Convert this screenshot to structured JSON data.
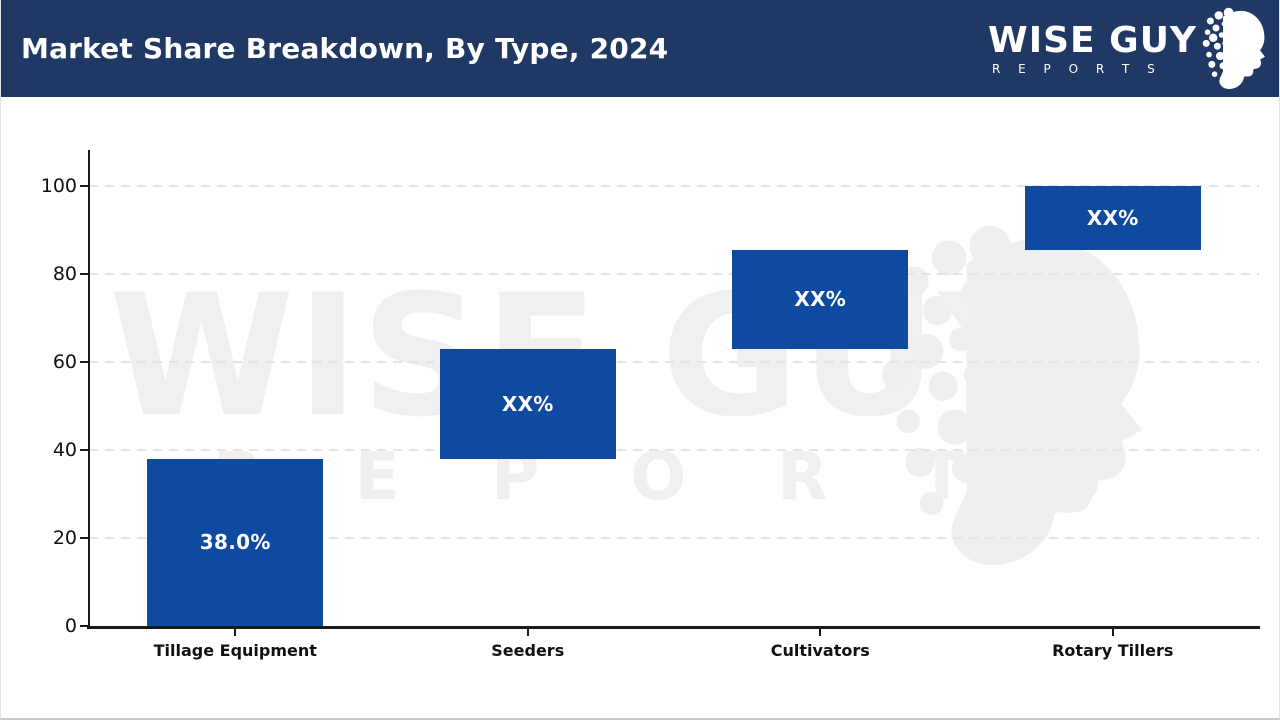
{
  "header": {
    "title": "Market Share Breakdown, By Type, 2024",
    "logo": {
      "brand_line1": "WISE GUY",
      "brand_line2": "R E P O R T S",
      "head_icon": "dotted-face-profile"
    }
  },
  "watermark": {
    "line1": "WISE GUY",
    "line2": "R E P O R T S",
    "head_icon": "dotted-face-profile"
  },
  "colors": {
    "header_bg": "#203864",
    "header_text": "#ffffff",
    "bar": "#0e4a9f",
    "bar_label": "#ffffff",
    "grid": "#e4e4e4",
    "axis": "#1a1a1a",
    "watermark": "#f0f0f2"
  },
  "chart_data": {
    "type": "bar",
    "subtype": "waterfall (floating cumulative bars)",
    "title": "Market Share Breakdown, By Type, 2024",
    "categories": [
      "Tillage Equipment",
      "Seeders",
      "Cultivators",
      "Rotary Tillers"
    ],
    "segments": [
      {
        "category": "Tillage Equipment",
        "start": 0,
        "end": 38,
        "value": 38.0,
        "label": "38.0%"
      },
      {
        "category": "Seeders",
        "start": 38,
        "end": 63,
        "value": 25.0,
        "label": "XX%"
      },
      {
        "category": "Cultivators",
        "start": 63,
        "end": 85.5,
        "value": 22.5,
        "label": "XX%"
      },
      {
        "category": "Rotary Tillers",
        "start": 85.5,
        "end": 100,
        "value": 14.5,
        "label": "XX%"
      }
    ],
    "xlabel": "",
    "ylabel": "",
    "ylim": [
      0,
      108
    ],
    "yticks": [
      0,
      20,
      40,
      60,
      80,
      100
    ],
    "grid": "horizontal dashed, light gray",
    "legend": "none",
    "bar_color": "#0e4a9f",
    "bar_label_color": "#ffffff"
  }
}
